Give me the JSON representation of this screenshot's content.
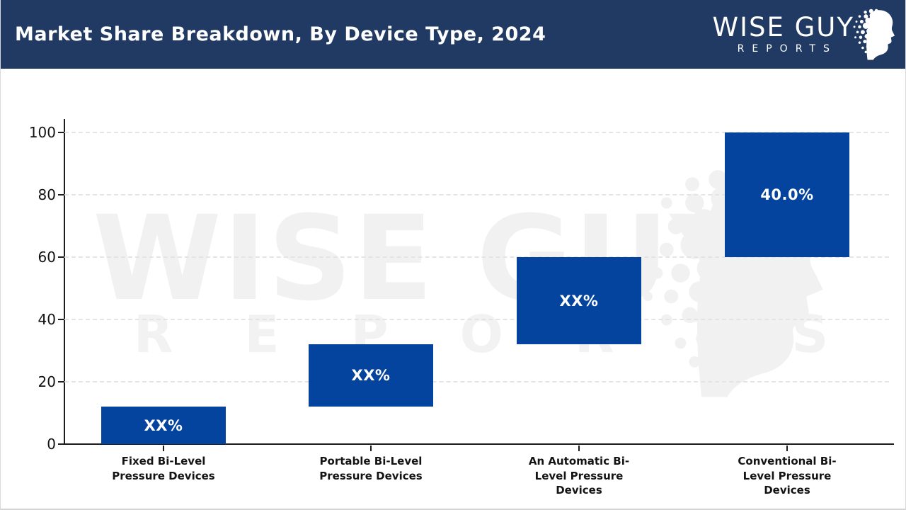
{
  "header": {
    "title": "Market Share Breakdown, By Device Type, 2024",
    "bg_color": "#213a63",
    "logo": {
      "line1": "WISE GUY",
      "line2": "REPORTS"
    }
  },
  "watermark": {
    "line1": "WISE GUY",
    "line2": "R E P O R T S"
  },
  "chart_data": {
    "type": "bar",
    "subtype": "waterfall-floating-bars",
    "title": "Market Share Breakdown, By Device Type, 2024",
    "categories": [
      "Fixed Bi-Level\nPressure Devices",
      "Portable Bi-Level\nPressure Devices",
      "An Automatic Bi-\nLevel Pressure\nDevices",
      "Conventional Bi-\nLevel Pressure\nDevices"
    ],
    "segments": [
      {
        "category": "Fixed Bi-Level Pressure Devices",
        "start": 0,
        "end": 12,
        "label": "XX%"
      },
      {
        "category": "Portable Bi-Level Pressure Devices",
        "start": 12,
        "end": 32,
        "label": "XX%"
      },
      {
        "category": "An Automatic Bi-Level Pressure Devices",
        "start": 32,
        "end": 60,
        "label": "XX%"
      },
      {
        "category": "Conventional Bi-Level Pressure Devices",
        "start": 60,
        "end": 100,
        "label": "40.0%"
      }
    ],
    "y_ticks": [
      0,
      20,
      40,
      60,
      80,
      100
    ],
    "ylim": [
      0,
      100
    ],
    "xlabel": "",
    "ylabel": "",
    "grid": "horizontal-dashed",
    "legend": "none",
    "bar_color": "#04439e",
    "value_label_color": "#ffffff"
  }
}
